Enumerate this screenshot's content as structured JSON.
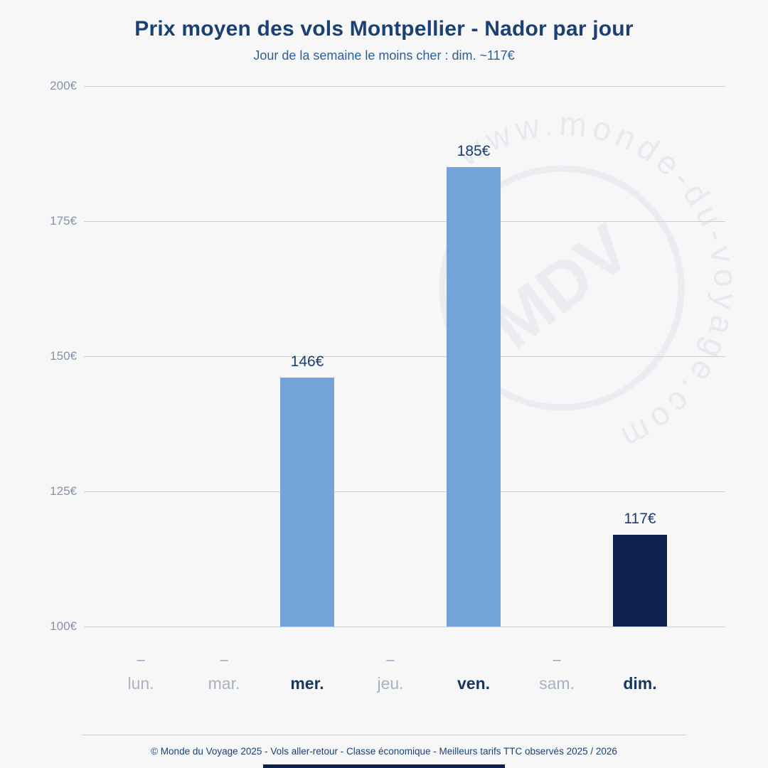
{
  "title": "Prix moyen des vols Montpellier - Nador par jour",
  "subtitle": "Jour de la semaine le moins cher : dim. ~117€",
  "footer": "© Monde du Voyage 2025 - Vols aller-retour - Classe économique - Meilleurs tarifs TTC observés 2025 / 2026",
  "watermark": {
    "circle_text": "www.monde-du-voyage.com",
    "center_text": "MDV"
  },
  "colors": {
    "background": "#f7f7f8",
    "title": "#1a4173",
    "subtitle": "#2d6099",
    "grid": "#c7cfdd",
    "tick_label": "#8492ab",
    "bar": "#74a3d9",
    "bar_highlight": "#0d2150",
    "value_label": "#1c3f6e",
    "day_active": "#17355f",
    "day_inactive": "#a8b2c4"
  },
  "chart_data": {
    "type": "bar",
    "categories": [
      "lun.",
      "mar.",
      "mer.",
      "jeu.",
      "ven.",
      "sam.",
      "dim."
    ],
    "values": [
      null,
      null,
      146,
      null,
      185,
      null,
      117
    ],
    "value_suffix": "€",
    "no_data_marker": "–",
    "highlight_index": 6,
    "yticks": [
      200,
      175,
      150,
      125,
      100
    ],
    "ytick_suffix": "€",
    "ylim": [
      100,
      200
    ],
    "grid": true,
    "legend": "none",
    "title": "Prix moyen des vols Montpellier - Nador par jour",
    "xlabel": "",
    "ylabel": ""
  }
}
